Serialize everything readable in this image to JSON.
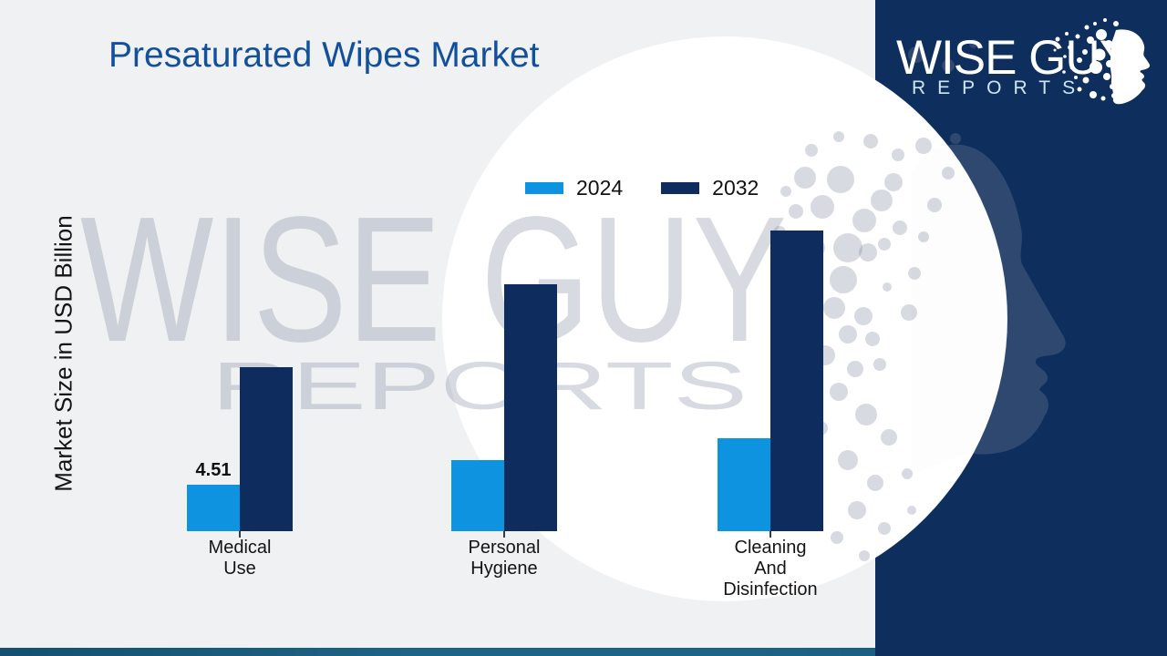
{
  "page": {
    "title": "Presaturated Wipes Market",
    "ylabel": "Market Size in USD Billion"
  },
  "brand": {
    "logo_line1": "WISE GUY",
    "logo_line2": "REPORTS",
    "watermark_line1": "WISE GUY",
    "watermark_line2": "REPORTS",
    "face_icon": "face-profile-dots-icon"
  },
  "chart_data": {
    "type": "bar",
    "title": "Presaturated Wipes Market",
    "xlabel": "",
    "ylabel": "Market Size in USD Billion",
    "categories": [
      "Medical Use",
      "Personal Hygiene",
      "Cleaning And Disinfection"
    ],
    "categories_lines": [
      [
        "Medical",
        "Use"
      ],
      [
        "Personal",
        "Hygiene"
      ],
      [
        "Cleaning",
        "And",
        "Disinfection"
      ]
    ],
    "series": [
      {
        "name": "2024",
        "color": "#0e93e0",
        "values": [
          4.51,
          6.9,
          9.0
        ]
      },
      {
        "name": "2032",
        "color": "#0e2d5e",
        "values": [
          15.9,
          24.0,
          29.2
        ]
      }
    ],
    "value_labels": [
      {
        "series": 0,
        "category": 0,
        "text": "4.51"
      }
    ],
    "ylim": [
      0,
      33
    ],
    "grid": false,
    "axis_line": false,
    "legend_position": "top-center"
  },
  "colors": {
    "background": "#f0f1f2",
    "title_blue": "#12509e",
    "series_2024": "#0e93e0",
    "series_2032": "#0e2d5e",
    "panel_navy": "#0e2e5e",
    "panel_face_blue": "#2e4a74",
    "watermark_gray": "#d3d7e0",
    "bottom_bar_teal": "#1a5f80",
    "text_dark": "#141414",
    "logo_reports_tint": "#cde6f2"
  }
}
